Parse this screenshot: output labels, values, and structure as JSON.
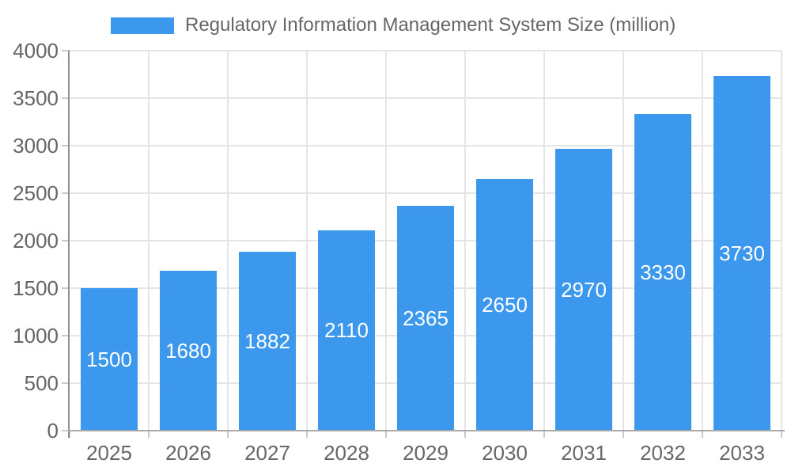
{
  "legend": {
    "label": "Regulatory Information Management System Size (million)"
  },
  "chart_data": {
    "type": "bar",
    "title": "Regulatory Information Management System Size (million)",
    "categories": [
      "2025",
      "2026",
      "2027",
      "2028",
      "2029",
      "2030",
      "2031",
      "2032",
      "2033"
    ],
    "values": [
      1500,
      1680,
      1882,
      2110,
      2365,
      2650,
      2970,
      3330,
      3730
    ],
    "xlabel": "",
    "ylabel": "",
    "ylim": [
      0,
      4000
    ],
    "yticks": [
      0,
      500,
      1000,
      1500,
      2000,
      2500,
      3000,
      3500,
      4000
    ],
    "grid": true,
    "legend_position": "top",
    "bar_value_labels_visible": true,
    "colors": {
      "bar": "#3b98ec",
      "bar_label": "#ffffff",
      "axis_text": "#666666",
      "grid_line": "#e5e5e5",
      "axis_line": "#aaaaaa",
      "tick_line": "#c9c9c9"
    }
  }
}
